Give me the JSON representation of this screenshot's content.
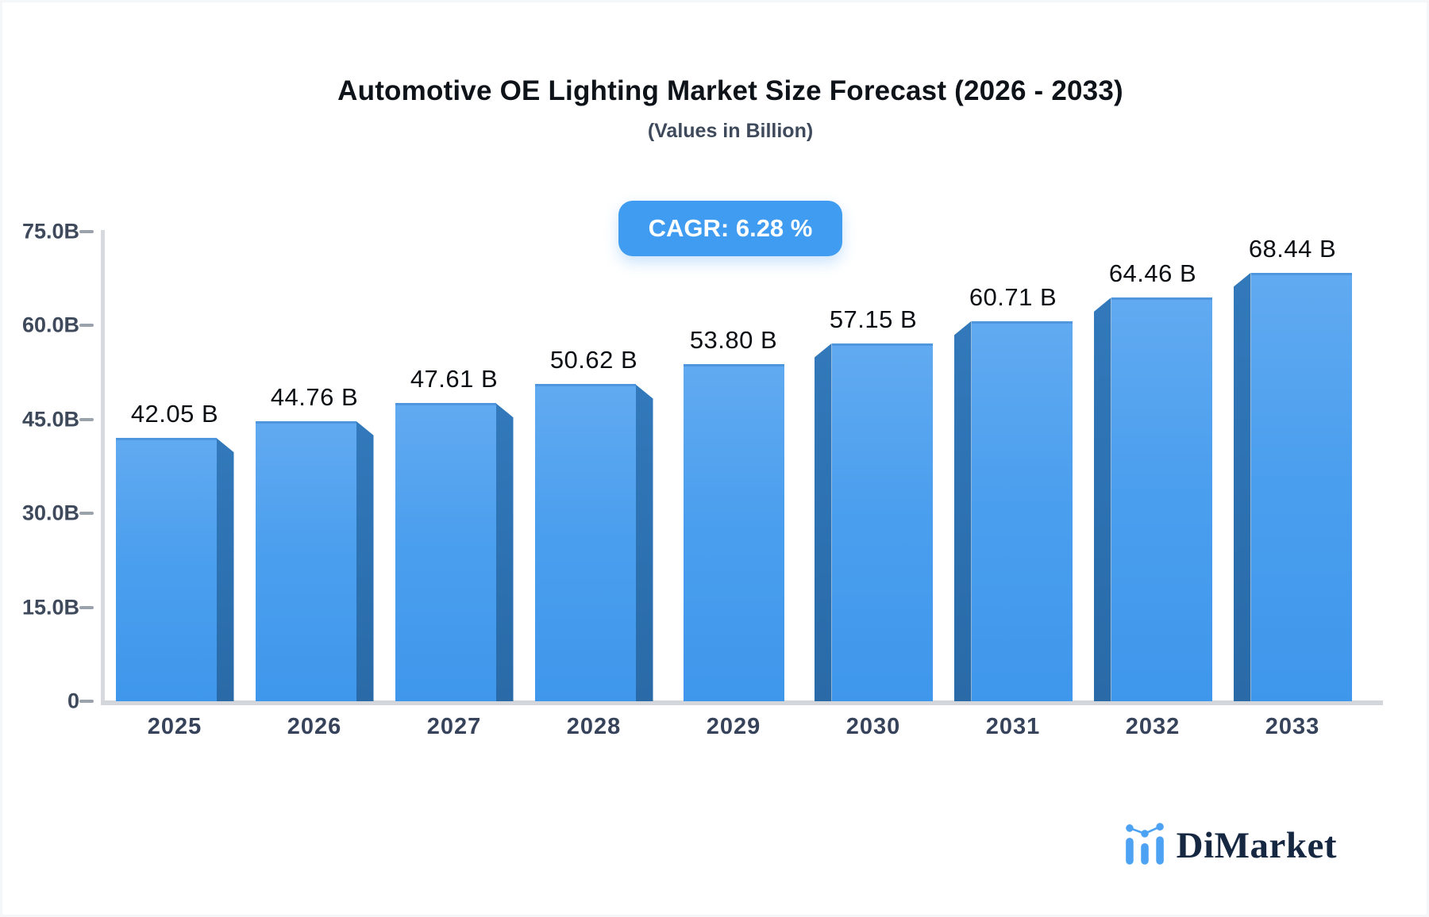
{
  "header": {
    "title": "Automotive OE Lighting Market Size Forecast (2026 - 2033)",
    "subtitle": "(Values in Billion)",
    "cagr_label": "CAGR: 6.28 %"
  },
  "brand": {
    "name": "DiMarket",
    "icon": "bar-chart-logo-icon",
    "icon_color": "#4da2f3",
    "text_color": "#152741"
  },
  "chart_data": {
    "type": "bar",
    "title": "Automotive OE Lighting Market Size Forecast (2026 - 2033)",
    "subtitle": "(Values in Billion)",
    "categories": [
      "2025",
      "2026",
      "2027",
      "2028",
      "2029",
      "2030",
      "2031",
      "2032",
      "2033"
    ],
    "values": [
      42.05,
      44.76,
      47.61,
      50.62,
      53.8,
      57.15,
      60.71,
      64.46,
      68.44
    ],
    "value_labels": [
      "42.05 B",
      "44.76 B",
      "47.61 B",
      "50.62 B",
      "53.80 B",
      "57.15 B",
      "60.71 B",
      "64.46 B",
      "68.44 B"
    ],
    "ylim": [
      0,
      75
    ],
    "ytick_values": [
      75,
      60,
      45,
      30,
      15,
      0
    ],
    "ytick_labels": [
      "75.0B",
      "60.0B",
      "45.0B",
      "30.0B",
      "15.0B",
      "0"
    ],
    "xlabel": "",
    "ylabel": "",
    "grid": false,
    "legend": false,
    "bar_style": "3d-perspective-center",
    "colors": {
      "bar_face_top": "#61aaf1",
      "bar_face_bottom": "#3f97ec",
      "bar_side": "#2c70b0",
      "axis_line": "#d6d9de",
      "tick_label": "#3e4a5b",
      "category_label": "#37435a",
      "value_label": "#0b0e13",
      "badge_background": "#3f9cf1",
      "badge_text": "#ffffff"
    }
  }
}
